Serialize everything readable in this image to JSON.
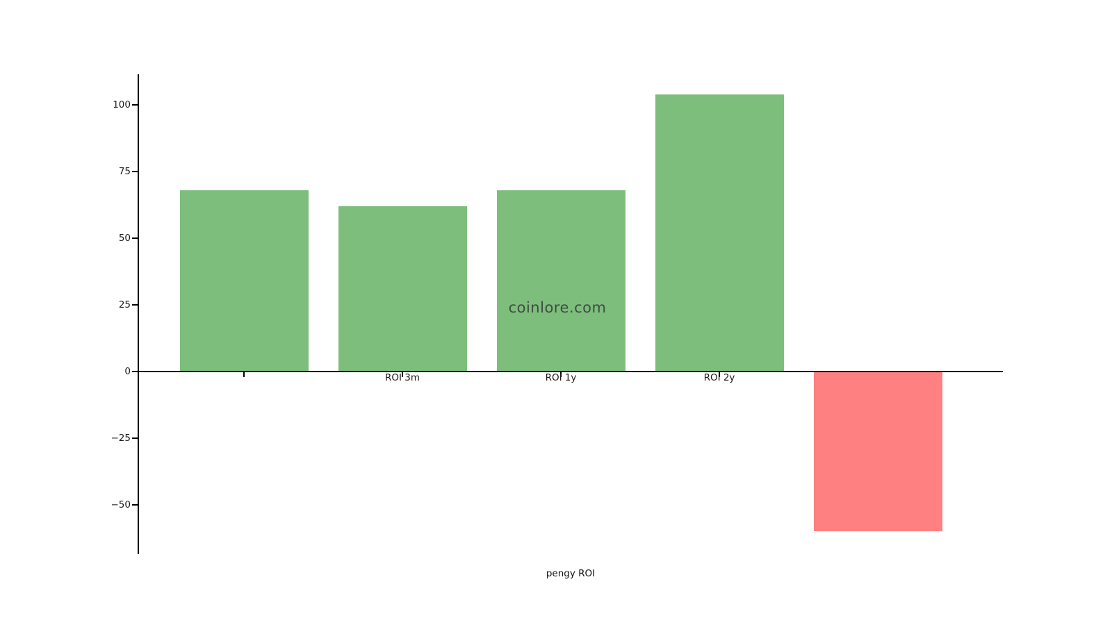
{
  "watermark": "coinlore.com",
  "colors": {
    "positive_bar": "#7dbe7d",
    "negative_bar": "#fe8080",
    "axis": "#000000",
    "tick_text": "#1a1a1a",
    "watermark_text": "#2d2d2d"
  },
  "chart_data": {
    "type": "bar",
    "title": "",
    "xlabel": "pengy ROI",
    "ylabel": "",
    "categories": [
      "",
      "ROI 3m",
      "ROI 1y",
      "ROI 2y",
      ""
    ],
    "values": [
      68,
      62,
      68,
      104,
      -60
    ],
    "bar_colors": [
      "#7dbe7d",
      "#7dbe7d",
      "#7dbe7d",
      "#7dbe7d",
      "#fe8080"
    ],
    "xticks_shown": [
      true,
      true,
      true,
      true,
      false
    ],
    "yticks": [
      100,
      75,
      50,
      25,
      0,
      -25,
      -50
    ],
    "ytick_labels": [
      "100",
      "75",
      "50",
      "25",
      "0",
      "−25",
      "−50"
    ],
    "ylim": [
      -68.5,
      111.5
    ],
    "grid": false,
    "legend": null,
    "annotations": [
      "coinlore.com"
    ]
  }
}
